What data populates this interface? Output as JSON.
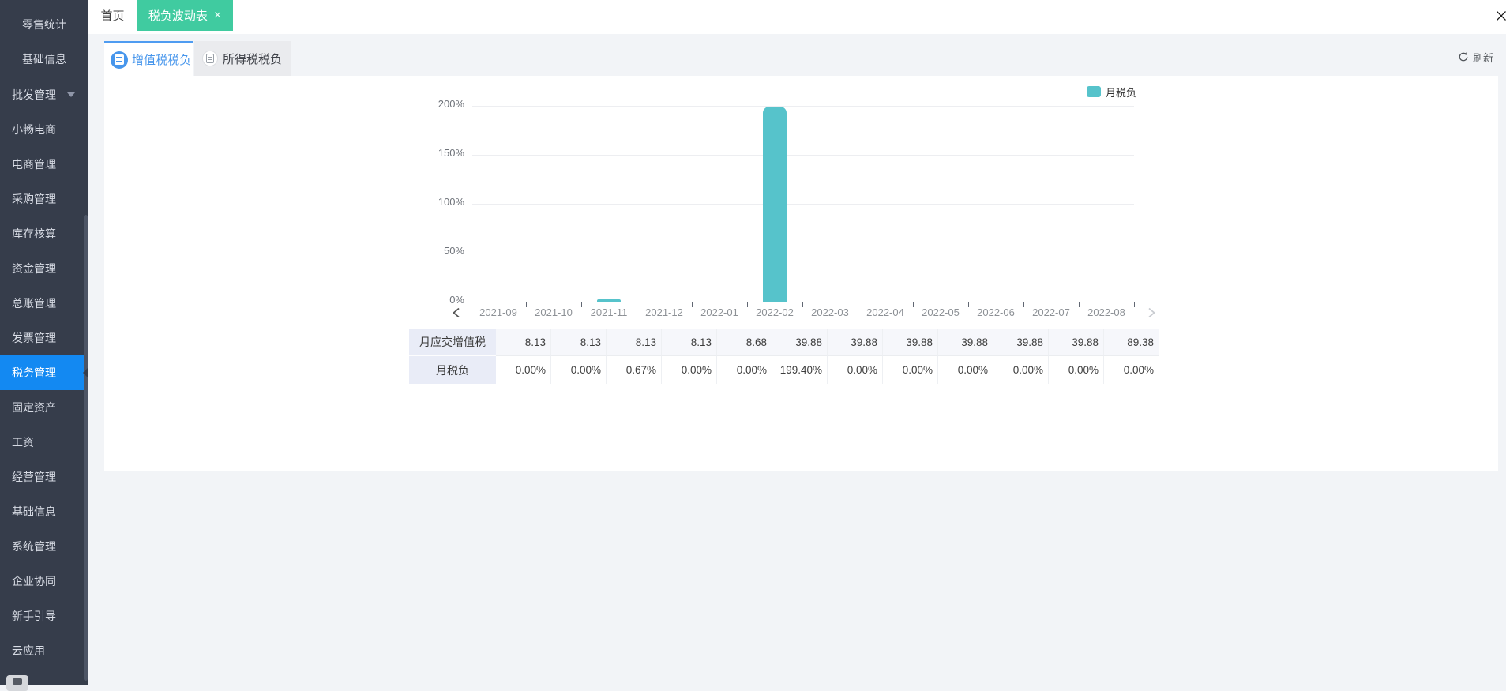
{
  "window": {
    "close": "×"
  },
  "top_nav": {
    "tabs": [
      {
        "label": "首页",
        "active": false
      },
      {
        "label": "税负波动表",
        "active": true,
        "close": "×"
      }
    ]
  },
  "sidebar": {
    "top_items": [
      {
        "label": "零售统计"
      },
      {
        "label": "基础信息"
      }
    ],
    "items": [
      {
        "label": "批发管理",
        "caret": true
      },
      {
        "label": "小畅电商"
      },
      {
        "label": "电商管理"
      },
      {
        "label": "采购管理"
      },
      {
        "label": "库存核算"
      },
      {
        "label": "资金管理"
      },
      {
        "label": "总账管理"
      },
      {
        "label": "发票管理"
      },
      {
        "label": "税务管理",
        "active": true
      },
      {
        "label": "固定资产"
      },
      {
        "label": "工资"
      },
      {
        "label": "经营管理"
      },
      {
        "label": "基础信息"
      },
      {
        "label": "系统管理"
      },
      {
        "label": "企业协同"
      },
      {
        "label": "新手引导"
      },
      {
        "label": "云应用"
      }
    ]
  },
  "page_tabs": [
    {
      "label": "增值税税负",
      "active": true
    },
    {
      "label": "所得税税负",
      "active": false
    }
  ],
  "toolbar": {
    "refresh_label": "刷新"
  },
  "chart_data": {
    "type": "bar",
    "categories": [
      "2021-09",
      "2021-10",
      "2021-11",
      "2021-12",
      "2022-01",
      "2022-02",
      "2022-03",
      "2022-04",
      "2022-05",
      "2022-06",
      "2022-07",
      "2022-08"
    ],
    "series": [
      {
        "name": "月税负",
        "values": [
          0,
          0,
          0.67,
          0,
          0,
          199.4,
          0,
          0,
          0,
          0,
          0,
          0
        ]
      }
    ],
    "unit": "%",
    "ylim": [
      0,
      200
    ],
    "yticks": [
      "0%",
      "50%",
      "100%",
      "150%",
      "200%"
    ],
    "legend": [
      {
        "name": "月税负",
        "color": "#56c3cb"
      }
    ],
    "grid": true,
    "legend_position": "top-right"
  },
  "table": {
    "rows": [
      {
        "label": "月应交增值税",
        "values": [
          "8.13",
          "8.13",
          "8.13",
          "8.13",
          "8.68",
          "39.88",
          "39.88",
          "39.88",
          "39.88",
          "39.88",
          "39.88",
          "89.38"
        ]
      },
      {
        "label": "月税负",
        "values": [
          "0.00%",
          "0.00%",
          "0.67%",
          "0.00%",
          "0.00%",
          "199.40%",
          "0.00%",
          "0.00%",
          "0.00%",
          "0.00%",
          "0.00%",
          "0.00%"
        ]
      }
    ]
  },
  "colors": {
    "bar": "#56c3cb",
    "active_tab_green": "#40cba0",
    "sidebar_active_blue": "#1389f2",
    "tab_blue": "#4796ec"
  }
}
